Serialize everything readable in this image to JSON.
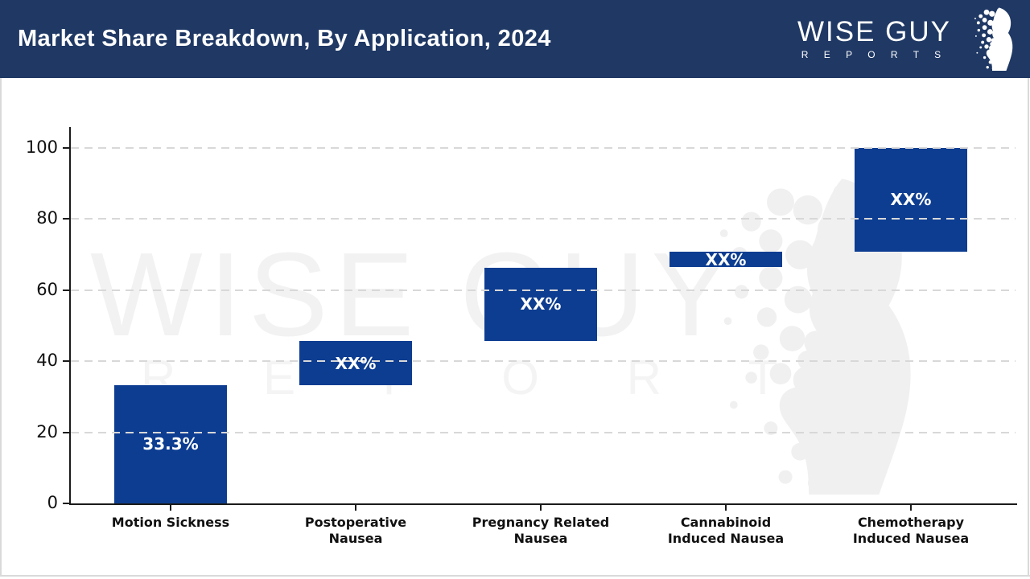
{
  "header": {
    "title": "Market Share Breakdown, By Application, 2024",
    "logo": {
      "name": "Wise Guy Reports",
      "line1": "WISE GUY",
      "line2": "R E P O R T S"
    }
  },
  "watermark": {
    "line1": "WISE GUY",
    "line2": "R E P O R T S"
  },
  "chart_data": {
    "type": "bar",
    "subtype": "waterfall",
    "title": "Market Share Breakdown, By Application, 2024",
    "orientation": "vertical",
    "legend": "none",
    "grid": "horizontal-dashed",
    "ylim": [
      0,
      105
    ],
    "y_ticks": [
      0,
      20,
      40,
      60,
      80,
      100
    ],
    "bar_color": "#0d3d91",
    "bar_label_color": "#ffffff",
    "categories": [
      "Motion Sickness",
      "Postoperative Nausea",
      "Pregnancy Related Nausea",
      "Cannabinoid Induced Nausea",
      "Chemotherapy Induced Nausea"
    ],
    "segments": [
      {
        "category": "Motion Sickness",
        "category_lines": [
          "Motion Sickness"
        ],
        "start": 0,
        "end": 33.3,
        "value": 33.3,
        "label": "33.3%"
      },
      {
        "category": "Postoperative Nausea",
        "category_lines": [
          "Postoperative",
          "Nausea"
        ],
        "start": 33.3,
        "end": 45.6,
        "value": 12.3,
        "label": "XX%"
      },
      {
        "category": "Pregnancy Related Nausea",
        "category_lines": [
          "Pregnancy Related",
          "Nausea"
        ],
        "start": 45.6,
        "end": 66.4,
        "value": 20.8,
        "label": "XX%"
      },
      {
        "category": "Cannabinoid Induced Nausea",
        "category_lines": [
          "Cannabinoid",
          "Induced Nausea"
        ],
        "start": 66.4,
        "end": 70.9,
        "value": 4.5,
        "label": "XX%"
      },
      {
        "category": "Chemotherapy Induced Nausea",
        "category_lines": [
          "Chemotherapy",
          "Induced Nausea"
        ],
        "start": 70.9,
        "end": 100,
        "value": 29.1,
        "label": "XX%"
      }
    ]
  },
  "colors": {
    "header_bg": "#1f3864",
    "bar": "#0d3d91",
    "grid": "#d8d8d8",
    "axis": "#1a1a1a",
    "frame_border": "#d9d9d9",
    "watermark": "#f2f2f2"
  }
}
